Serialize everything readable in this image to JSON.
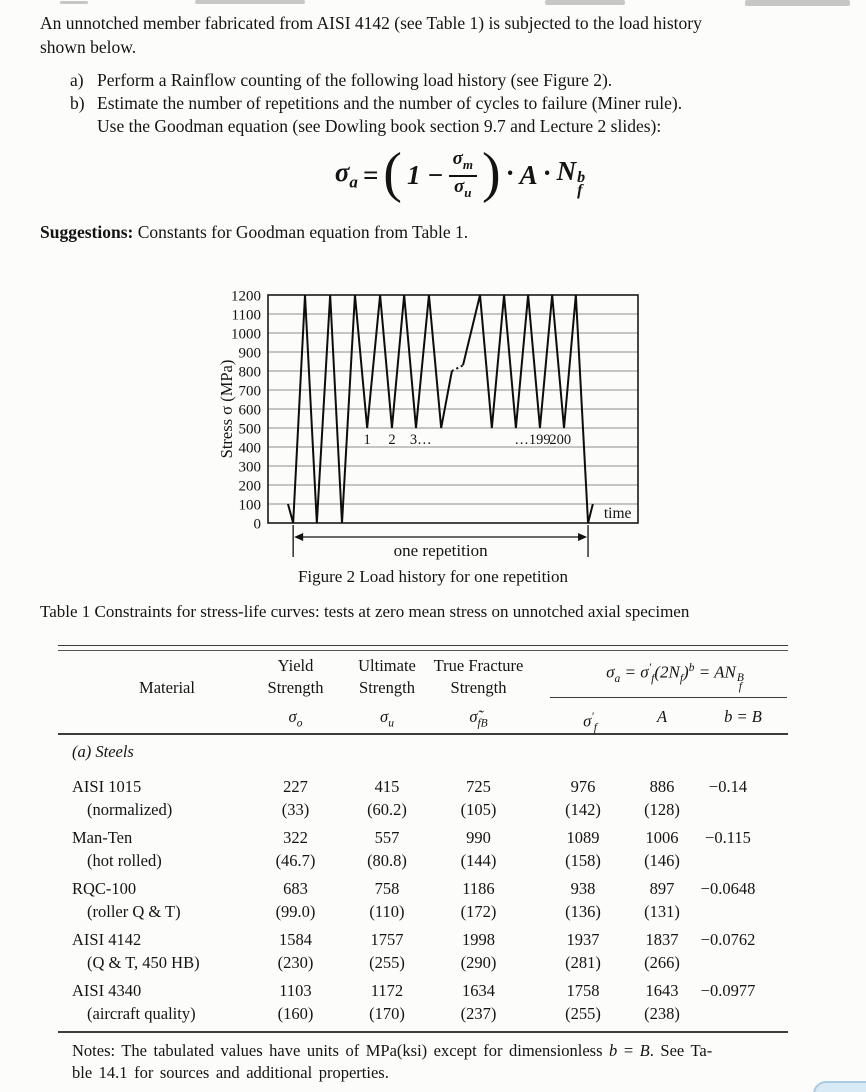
{
  "page": {
    "intro_line1": "An unnotched member fabricated from AISI 4142 (see Table 1) is subjected to the load history",
    "intro_line2": "shown below.",
    "item_a_marker": "a)",
    "item_a_text": "Perform a Rainflow counting of the following load history (see Figure 2).",
    "item_b_marker": "b)",
    "item_b_text": "Estimate the number of repetitions and the number of cycles to failure (Miner rule).",
    "item_b_text2": "Use the Goodman equation (see Dowling book section 9.7 and Lecture 2 slides):",
    "suggestions_label": "Suggestions:",
    "suggestions_text": " Constants for Goodman equation from Table 1."
  },
  "equation": {
    "lhs": "σ",
    "lhs_sub": "a",
    "eq": "=",
    "paren_l": "(",
    "one_minus": "1 −",
    "num": "σ",
    "num_sub": "m",
    "den": "σ",
    "den_sub": "u",
    "paren_r": ")",
    "cdot1": "·",
    "factor": "A",
    "cdot2": "·",
    "n": "N",
    "n_sup": "b",
    "n_sub": "f"
  },
  "figure": {
    "y_axis_label": "Stress σ (MPa)",
    "y_ticks": [
      "1200",
      "1100",
      "1000",
      "900",
      "800",
      "700",
      "600",
      "500",
      "400",
      "300",
      "200",
      "100",
      "0"
    ],
    "time_label": "time",
    "repetition_label": "one repetition",
    "caption": "Figure 2 Load history for one repetition"
  },
  "chart_data": {
    "type": "line",
    "title": "Figure 2 Load history for one repetition",
    "xlabel": "time",
    "ylabel": "Stress σ (MPa)",
    "ylim": [
      0,
      1200
    ],
    "y_tick_step": 100,
    "grid": "horizontal gridlines every 100 MPa",
    "description": "One repetition: 3 large cycles 0↔1200 MPa, then 200 small cycles 500↔1200 MPa (valleys numbered 1, 2, 3…199, 200; middle cycles omitted with a dotted break at ≈800 MPa), ending with a drop to 0 and rise back to 100 MPa.",
    "large_cycles": {
      "count": 3,
      "min_mpa": 0,
      "max_mpa": 1200
    },
    "small_cycles": {
      "count": 200,
      "min_mpa": 500,
      "max_mpa": 1200
    },
    "segments": [
      [
        [
          0.054,
          100
        ],
        [
          0.068,
          0
        ],
        [
          0.1,
          1200
        ],
        [
          0.132,
          0
        ],
        [
          0.168,
          1200
        ],
        [
          0.2,
          0
        ],
        [
          0.235,
          1200
        ],
        [
          0.268,
          500
        ],
        [
          0.303,
          1200
        ],
        [
          0.335,
          500
        ],
        [
          0.368,
          1200
        ],
        [
          0.4,
          500
        ],
        [
          0.435,
          1200
        ],
        [
          0.468,
          500
        ],
        [
          0.497,
          800
        ]
      ],
      [
        [
          0.527,
          830
        ],
        [
          0.573,
          1200
        ],
        [
          0.605,
          500
        ],
        [
          0.638,
          1200
        ],
        [
          0.67,
          500
        ],
        [
          0.703,
          1200
        ],
        [
          0.735,
          500
        ],
        [
          0.768,
          1200
        ],
        [
          0.8,
          500
        ],
        [
          0.832,
          1200
        ],
        [
          0.865,
          0
        ],
        [
          0.878,
          100
        ]
      ]
    ],
    "break_segment": [
      [
        0.497,
        800
      ],
      [
        0.527,
        830
      ]
    ],
    "valley_labels": [
      {
        "text": "1",
        "x": 0.268
      },
      {
        "text": "2",
        "x": 0.335
      },
      {
        "text": "3…",
        "x": 0.413
      },
      {
        "text": "…199",
        "x": 0.715
      },
      {
        "text": "200",
        "x": 0.79
      }
    ],
    "time_label_x": 0.945,
    "repetition_span_x": [
      0.068,
      0.865
    ]
  },
  "table": {
    "title": "Table 1 Constraints for stress-life curves: tests at zero mean stress on unnotched axial specimen",
    "headers": {
      "material": "Material",
      "yield_l1": "Yield",
      "yield_l2": "Strength",
      "ultimate_l1": "Ultimate",
      "ultimate_l2": "Strength",
      "fracture_l1": "True Fracture",
      "fracture_l2": "Strength"
    },
    "header_equation": {
      "s": "σ",
      "s_sub": "a",
      "eq1": " = ",
      "f": "σ",
      "f_prime": "′",
      "f_sub": "f",
      "open": "(2N",
      "open_sub": "f",
      "close": ")",
      "close_sup": "b",
      "eq2": " = ",
      "an": "AN",
      "an_sub": "f",
      "an_sup": "B"
    },
    "sub_headers": {
      "sigma_o": {
        "base": "σ",
        "sub": "o"
      },
      "sigma_u": {
        "base": "σ",
        "sub": "u"
      },
      "sigma_fb": {
        "base": "σ̃",
        "sub": "fB"
      },
      "sigma_fp": {
        "base": "σ",
        "prime": "′",
        "sub": "f"
      },
      "a_label": "A",
      "bb_b": "b",
      "bb_eq": " = ",
      "bb_B": "B"
    },
    "section_label": "(a) Steels",
    "rows": [
      {
        "name": "AISI 1015",
        "spec": "(normalized)",
        "values": [
          "227",
          "415",
          "725",
          "976",
          "886"
        ],
        "ksi": [
          "(33)",
          "(60.2)",
          "(105)",
          "(142)",
          "(128)"
        ],
        "b": "−0.14"
      },
      {
        "name": "Man-Ten",
        "spec": "(hot rolled)",
        "values": [
          "322",
          "557",
          "990",
          "1089",
          "1006"
        ],
        "ksi": [
          "(46.7)",
          "(80.8)",
          "(144)",
          "(158)",
          "(146)"
        ],
        "b": "−0.115"
      },
      {
        "name": "RQC-100",
        "spec": "(roller Q & T)",
        "values": [
          "683",
          "758",
          "1186",
          "938",
          "897"
        ],
        "ksi": [
          "(99.0)",
          "(110)",
          "(172)",
          "(136)",
          "(131)"
        ],
        "b": "−0.0648"
      },
      {
        "name": "AISI 4142",
        "spec": "(Q & T, 450 HB)",
        "values": [
          "1584",
          "1757",
          "1998",
          "1937",
          "1837"
        ],
        "ksi": [
          "(230)",
          "(255)",
          "(290)",
          "(281)",
          "(266)"
        ],
        "b": "−0.0762"
      },
      {
        "name": "AISI 4340",
        "spec": "(aircraft quality)",
        "values": [
          "1103",
          "1172",
          "1634",
          "1758",
          "1643"
        ],
        "ksi": [
          "(160)",
          "(170)",
          "(237)",
          "(255)",
          "(238)"
        ],
        "b": "−0.0977"
      }
    ],
    "notes": {
      "l1a": "Notes:",
      "l1b": "  The tabulated values have units of MPa(ksi) except for dimensionless ",
      "l1c": "b",
      "l1d": " = ",
      "l1e": "B",
      "l1f": ".  See Ta-",
      "l2": "ble 14.1 for sources and additional properties."
    }
  }
}
